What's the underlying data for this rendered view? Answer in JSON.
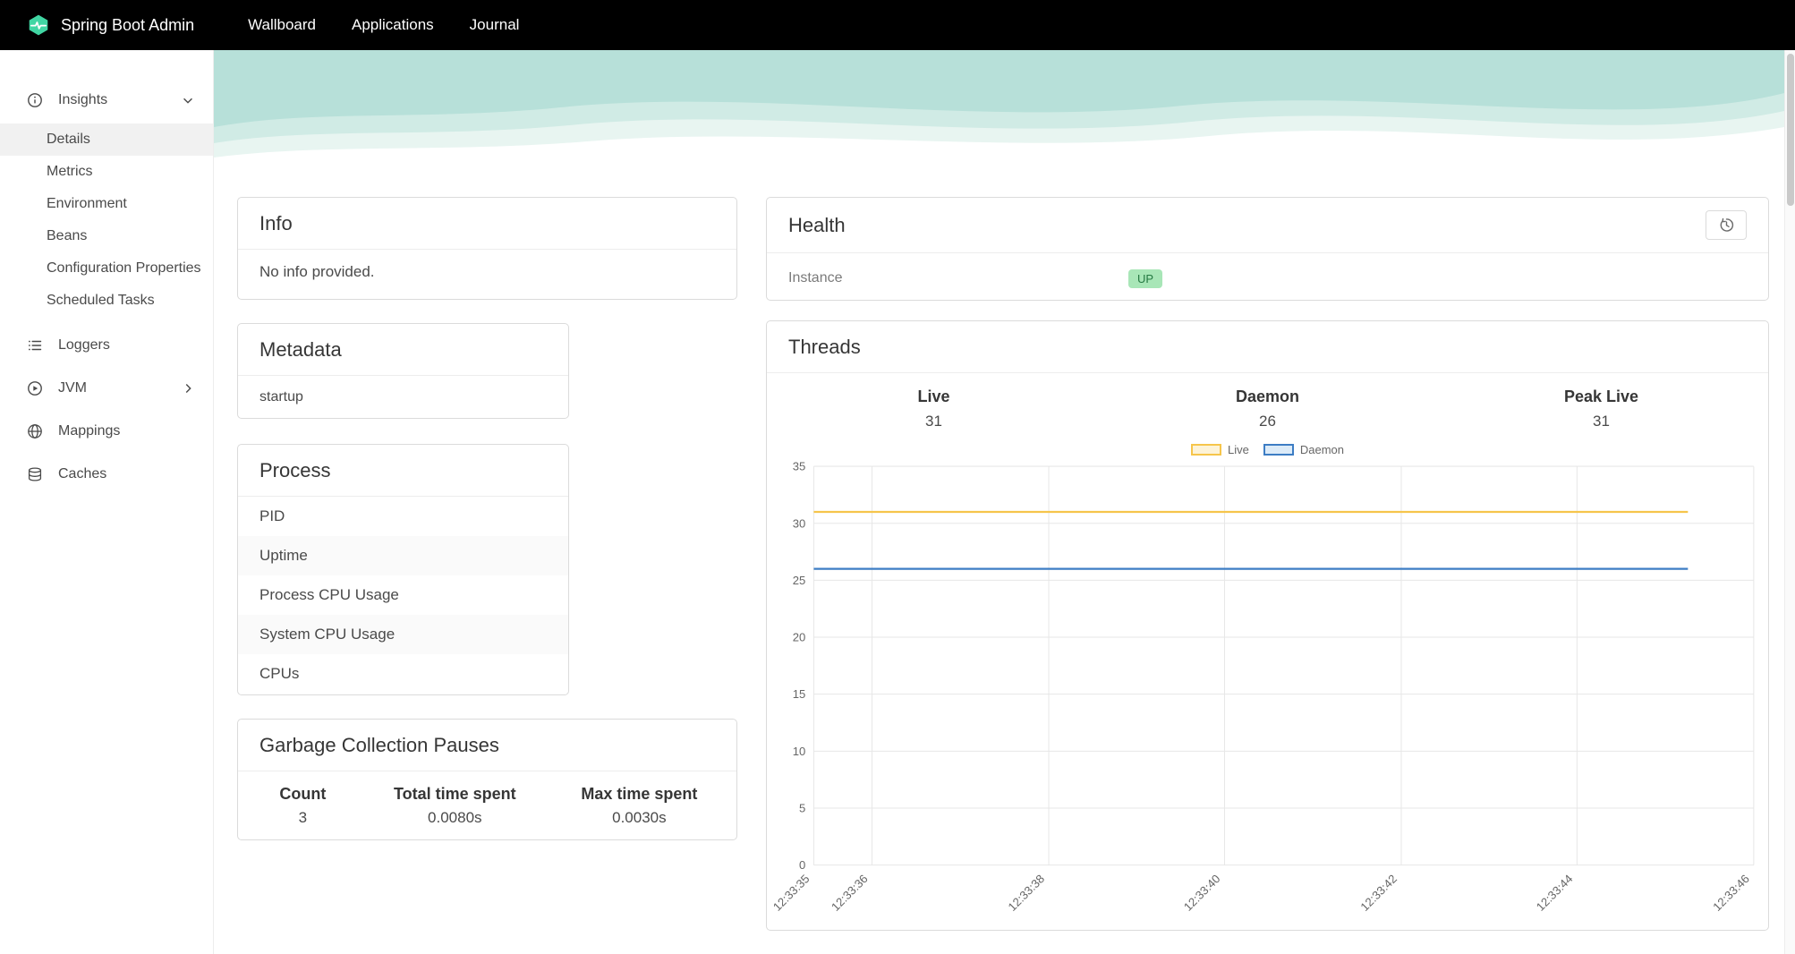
{
  "theme": {
    "navbar_bg": "#000000",
    "brand_green": "#41d6a3",
    "banner_teal_dark": "#b7e0d9",
    "banner_teal_mid": "#d0ebe5",
    "banner_teal_light": "#e8f5f1",
    "up_badge_bg": "#a8e6b7",
    "up_badge_text": "#257942",
    "card_border": "#dbdbdb"
  },
  "navbar": {
    "brand": "Spring Boot Admin",
    "items": [
      {
        "label": "Wallboard"
      },
      {
        "label": "Applications"
      },
      {
        "label": "Journal"
      }
    ]
  },
  "sidebar": {
    "insights": {
      "label": "Insights",
      "icon": "info-icon",
      "state": "expanded"
    },
    "insights_items": [
      {
        "label": "Details",
        "active": true
      },
      {
        "label": "Metrics"
      },
      {
        "label": "Environment"
      },
      {
        "label": "Beans"
      },
      {
        "label": "Configuration Properties"
      },
      {
        "label": "Scheduled Tasks"
      }
    ],
    "items": [
      {
        "label": "Loggers",
        "icon": "loggers-icon"
      },
      {
        "label": "JVM",
        "icon": "jvm-icon",
        "state": "collapsed"
      },
      {
        "label": "Mappings",
        "icon": "globe-icon"
      },
      {
        "label": "Caches",
        "icon": "database-icon"
      }
    ]
  },
  "info_card": {
    "title": "Info",
    "empty_message": "No info provided."
  },
  "metadata_card": {
    "title": "Metadata",
    "rows": [
      {
        "key": "startup"
      }
    ]
  },
  "process_card": {
    "title": "Process",
    "rows": [
      {
        "label": "PID"
      },
      {
        "label": "Uptime"
      },
      {
        "label": "Process CPU Usage"
      },
      {
        "label": "System CPU Usage"
      },
      {
        "label": "CPUs"
      }
    ]
  },
  "gc_card": {
    "title": "Garbage Collection Pauses",
    "columns": [
      "Count",
      "Total time spent",
      "Max time spent"
    ],
    "values": [
      "3",
      "0.0080s",
      "0.0030s"
    ]
  },
  "health_card": {
    "title": "Health",
    "rows": [
      {
        "label": "Instance",
        "status": "UP"
      }
    ]
  },
  "threads_card": {
    "title": "Threads",
    "stats": [
      {
        "label": "Live",
        "value": "31"
      },
      {
        "label": "Daemon",
        "value": "26"
      },
      {
        "label": "Peak Live",
        "value": "31"
      }
    ]
  },
  "chart_data": {
    "type": "line",
    "title": "Threads",
    "xlabel": "",
    "ylabel": "",
    "ylim": [
      0,
      35
    ],
    "ytick_step": 5,
    "grid": true,
    "legend_position": "top",
    "x_ticks": [
      {
        "label": "12:33:35",
        "pos": 0.0
      },
      {
        "label": "12:33:36",
        "pos": 0.062
      },
      {
        "label": "12:33:38",
        "pos": 0.25
      },
      {
        "label": "12:33:40",
        "pos": 0.437
      },
      {
        "label": "12:33:42",
        "pos": 0.625
      },
      {
        "label": "12:33:44",
        "pos": 0.812
      },
      {
        "label": "12:33:46",
        "pos": 1.0
      }
    ],
    "series": [
      {
        "name": "Live",
        "value": 31,
        "color": "#f6c54b",
        "fill": "#fdf3d7",
        "span": [
          0.0,
          0.93
        ]
      },
      {
        "name": "Daemon",
        "value": 26,
        "color": "#3d7dc4",
        "fill": "#dcebf8",
        "span": [
          0.0,
          0.93
        ]
      }
    ]
  }
}
